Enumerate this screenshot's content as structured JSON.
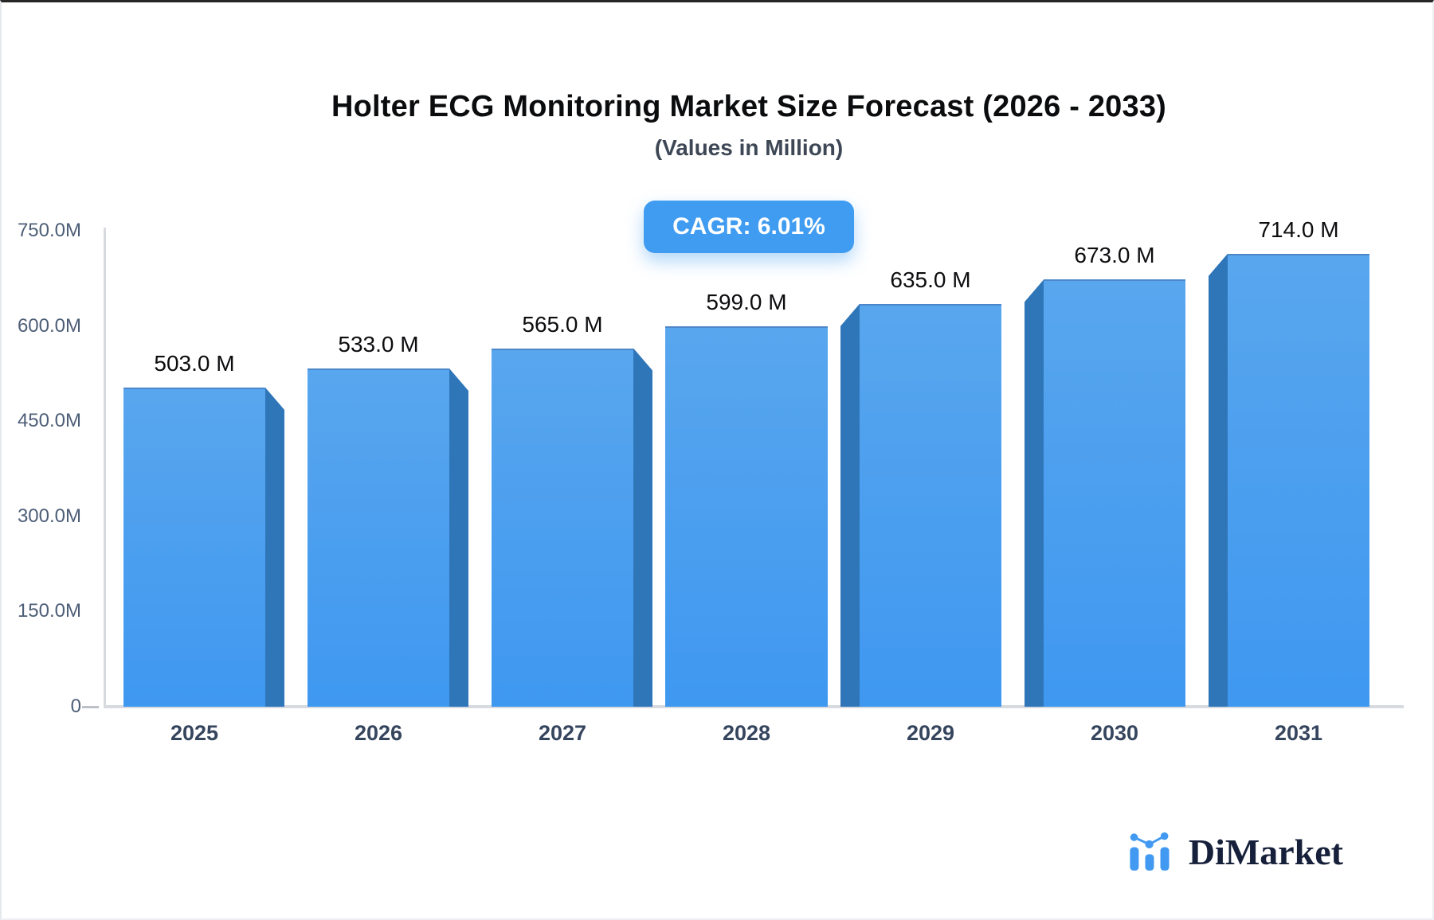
{
  "header": {
    "title": "Holter ECG Monitoring Market Size Forecast (2026 - 2033)",
    "subtitle": "(Values in Million)",
    "cagr_badge": "CAGR: 6.01%"
  },
  "chart_data": {
    "type": "bar",
    "title": "Holter ECG Monitoring Market Size Forecast (2026 - 2033)",
    "subtitle": "(Values in Million)",
    "categories": [
      "2025",
      "2026",
      "2027",
      "2028",
      "2029",
      "2030",
      "2031"
    ],
    "values": [
      503,
      533,
      565,
      599,
      635,
      673,
      714
    ],
    "bar_labels": [
      "503.0 M",
      "533.0 M",
      "565.0 M",
      "599.0 M",
      "635.0 M",
      "673.0 M",
      "714.0 M"
    ],
    "ytick_labels": [
      "750.0M",
      "600.0M",
      "450.0M",
      "300.0M",
      "150.0M",
      "0"
    ],
    "ytick_values": [
      750,
      600,
      450,
      300,
      150,
      0
    ],
    "ylim": [
      0,
      750
    ],
    "xlabel": "",
    "ylabel": "",
    "grid": "off",
    "legend_position": "none",
    "annotations": [
      "CAGR: 6.01%"
    ],
    "colors": {
      "bar_front_top": "#58a6ee",
      "bar_front_bottom": "#3f98f0",
      "bar_edge": "#4c87c9",
      "bar_side": "#2f76b9",
      "badge": "#3f9cf1",
      "axis": "#d7dade"
    }
  },
  "branding": {
    "logo_text": "DiMarket",
    "logo_icon": "mini-bar-chart-icon",
    "logo_icon_color": "#4199f1",
    "logo_text_color": "#16203a"
  }
}
